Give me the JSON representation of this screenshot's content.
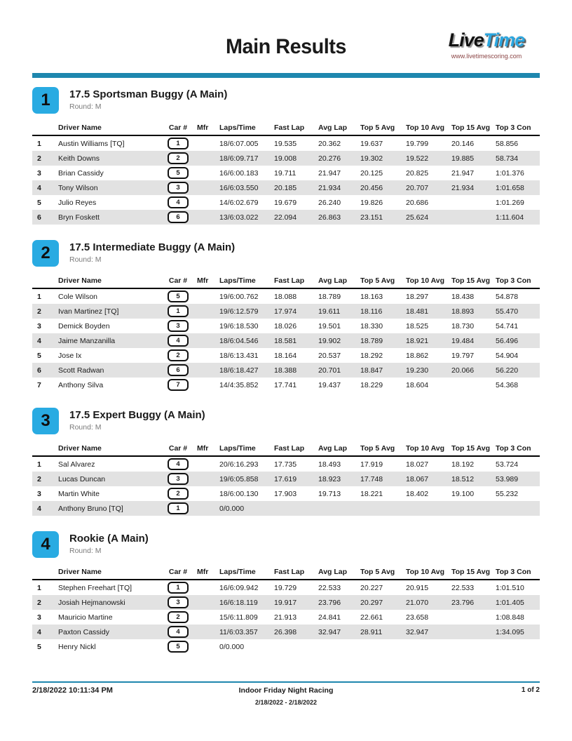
{
  "page": {
    "title": "Main Results",
    "logo": {
      "live": "Live",
      "time": "Time",
      "website": "www.livetimescoring.com"
    }
  },
  "columns": [
    "Driver Name",
    "Car #",
    "Mfr",
    "Laps/Time",
    "Fast Lap",
    "Avg Lap",
    "Top 5 Avg",
    "Top 10 Avg",
    "Top 15 Avg",
    "Top 3 Con"
  ],
  "sections": [
    {
      "number": "1",
      "title": "17.5 Sportsman Buggy (A Main)",
      "round": "Round: M",
      "rows": [
        [
          "1",
          "Austin Williams [TQ]",
          "1",
          "",
          "18/6:07.005",
          "19.535",
          "20.362",
          "19.637",
          "19.799",
          "20.146",
          "58.856"
        ],
        [
          "2",
          "Keith Downs",
          "2",
          "",
          "18/6:09.717",
          "19.008",
          "20.276",
          "19.302",
          "19.522",
          "19.885",
          "58.734"
        ],
        [
          "3",
          "Brian Cassidy",
          "5",
          "",
          "16/6:00.183",
          "19.711",
          "21.947",
          "20.125",
          "20.825",
          "21.947",
          "1:01.376"
        ],
        [
          "4",
          "Tony Wilson",
          "3",
          "",
          "16/6:03.550",
          "20.185",
          "21.934",
          "20.456",
          "20.707",
          "21.934",
          "1:01.658"
        ],
        [
          "5",
          "Julio Reyes",
          "4",
          "",
          "14/6:02.679",
          "19.679",
          "26.240",
          "19.826",
          "20.686",
          "",
          "1:01.269"
        ],
        [
          "6",
          "Bryn Foskett",
          "6",
          "",
          "13/6:03.022",
          "22.094",
          "26.863",
          "23.151",
          "25.624",
          "",
          "1:11.604"
        ]
      ]
    },
    {
      "number": "2",
      "title": "17.5 Intermediate Buggy (A Main)",
      "round": "Round: M",
      "rows": [
        [
          "1",
          "Cole Wilson",
          "5",
          "",
          "19/6:00.762",
          "18.088",
          "18.789",
          "18.163",
          "18.297",
          "18.438",
          "54.878"
        ],
        [
          "2",
          "Ivan Martinez [TQ]",
          "1",
          "",
          "19/6:12.579",
          "17.974",
          "19.611",
          "18.116",
          "18.481",
          "18.893",
          "55.470"
        ],
        [
          "3",
          "Demick Boyden",
          "3",
          "",
          "19/6:18.530",
          "18.026",
          "19.501",
          "18.330",
          "18.525",
          "18.730",
          "54.741"
        ],
        [
          "4",
          "Jaime Manzanilla",
          "4",
          "",
          "18/6:04.546",
          "18.581",
          "19.902",
          "18.789",
          "18.921",
          "19.484",
          "56.496"
        ],
        [
          "5",
          "Jose Ix",
          "2",
          "",
          "18/6:13.431",
          "18.164",
          "20.537",
          "18.292",
          "18.862",
          "19.797",
          "54.904"
        ],
        [
          "6",
          "Scott Radwan",
          "6",
          "",
          "18/6:18.427",
          "18.388",
          "20.701",
          "18.847",
          "19.230",
          "20.066",
          "56.220"
        ],
        [
          "7",
          "Anthony Silva",
          "7",
          "",
          "14/4:35.852",
          "17.741",
          "19.437",
          "18.229",
          "18.604",
          "",
          "54.368"
        ]
      ]
    },
    {
      "number": "3",
      "title": "17.5 Expert Buggy (A Main)",
      "round": "Round: M",
      "rows": [
        [
          "1",
          "Sal Alvarez",
          "4",
          "",
          "20/6:16.293",
          "17.735",
          "18.493",
          "17.919",
          "18.027",
          "18.192",
          "53.724"
        ],
        [
          "2",
          "Lucas Duncan",
          "3",
          "",
          "19/6:05.858",
          "17.619",
          "18.923",
          "17.748",
          "18.067",
          "18.512",
          "53.989"
        ],
        [
          "3",
          "Martin White",
          "2",
          "",
          "18/6:00.130",
          "17.903",
          "19.713",
          "18.221",
          "18.402",
          "19.100",
          "55.232"
        ],
        [
          "4",
          "Anthony Bruno [TQ]",
          "1",
          "",
          "0/0.000",
          "",
          "",
          "",
          "",
          "",
          ""
        ]
      ]
    },
    {
      "number": "4",
      "title": "Rookie (A Main)",
      "round": "Round: M",
      "rows": [
        [
          "1",
          "Stephen Freehart [TQ]",
          "1",
          "",
          "16/6:09.942",
          "19.729",
          "22.533",
          "20.227",
          "20.915",
          "22.533",
          "1:01.510"
        ],
        [
          "2",
          "Josiah Hejmanowski",
          "3",
          "",
          "16/6:18.119",
          "19.917",
          "23.796",
          "20.297",
          "21.070",
          "23.796",
          "1:01.405"
        ],
        [
          "3",
          "Mauricio Martine",
          "2",
          "",
          "15/6:11.809",
          "21.913",
          "24.841",
          "22.661",
          "23.658",
          "",
          "1:08.848"
        ],
        [
          "4",
          "Paxton Cassidy",
          "4",
          "",
          "11/6:03.357",
          "26.398",
          "32.947",
          "28.911",
          "32.947",
          "",
          "1:34.095"
        ],
        [
          "5",
          "Henry Nickl",
          "5",
          "",
          "0/0.000",
          "",
          "",
          "",
          "",
          "",
          ""
        ]
      ]
    }
  ],
  "footer": {
    "timestamp": "2/18/2022 10:11:34 PM",
    "event": "Indoor Friday Night Racing",
    "date_range": "2/18/2022 - 2/18/2022",
    "page": "1 of 2"
  },
  "colors": {
    "accent_bar": "#1E87AE",
    "section_badge": "#29ABE2",
    "row_alt": "#E2E2E2",
    "website_text": "#8B4545"
  }
}
